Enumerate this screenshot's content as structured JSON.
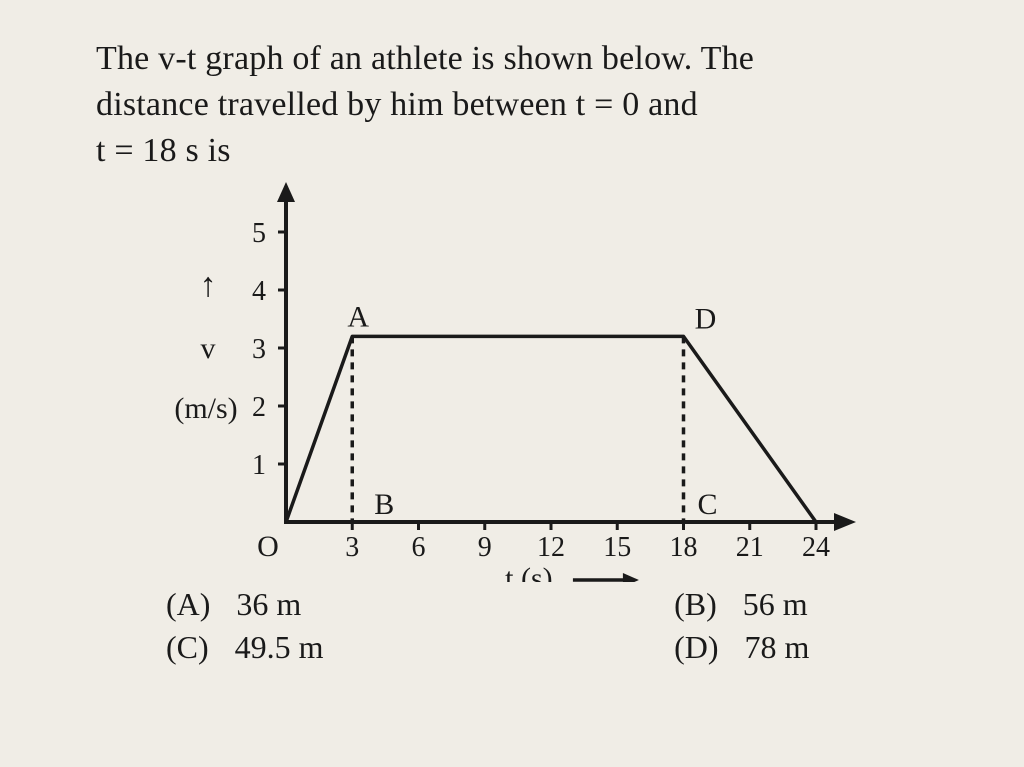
{
  "question": {
    "line1": "The v-t graph of an athlete is shown below. The",
    "line2": "distance travelled by him between t = 0 and",
    "line3": "t = 18 s is"
  },
  "chart": {
    "type": "line",
    "background_color": "#f0ede6",
    "axis_color": "#1a1a1a",
    "line_color": "#1a1a1a",
    "dash_pattern": "7,6",
    "axis_stroke_width": 4,
    "plot_stroke_width": 3.5,
    "dash_stroke_width": 3.5,
    "x": {
      "label": "t (s)",
      "ticks": [
        3,
        6,
        9,
        12,
        15,
        18,
        21,
        24
      ],
      "lim": [
        0,
        24
      ]
    },
    "y": {
      "label_top_arrow": "↑",
      "label_v": "v",
      "label_unit": "(m/s)",
      "ticks": [
        1,
        2,
        3,
        4,
        5
      ],
      "lim": [
        0,
        5
      ]
    },
    "points": {
      "O": {
        "t": 0,
        "v": 0,
        "label": "O"
      },
      "A": {
        "t": 3,
        "v": 3.2,
        "label": "A"
      },
      "D": {
        "t": 18,
        "v": 3.2,
        "label": "D"
      },
      "E": {
        "t": 24,
        "v": 0,
        "label": ""
      },
      "B": {
        "t": 3,
        "v": 0,
        "label": "B"
      },
      "C": {
        "t": 18,
        "v": 0,
        "label": "C"
      }
    },
    "tick_font_size": 28,
    "point_label_font_size": 30,
    "axis_label_font_size": 30
  },
  "options": {
    "A": {
      "label": "(A)",
      "value": "36 m"
    },
    "B": {
      "label": "(B)",
      "value": "56 m"
    },
    "C": {
      "label": "(C)",
      "value": "49.5 m"
    },
    "D": {
      "label": "(D)",
      "value": "78 m"
    }
  }
}
